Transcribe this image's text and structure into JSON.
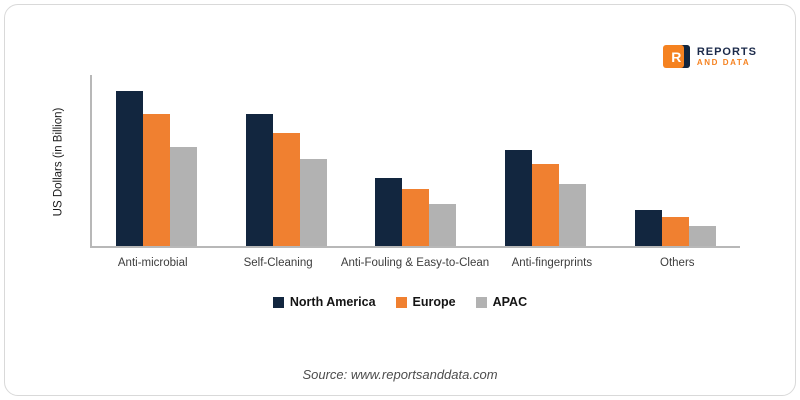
{
  "logo": {
    "mark": "R",
    "text_main": "REPORTS",
    "text_sub": "AND DATA"
  },
  "source": "Source: www.reportsanddata.com",
  "colors": {
    "north_america": "#12263f",
    "europe": "#f08030",
    "apac": "#b2b2b2",
    "axis": "#b8b8b8",
    "brand_orange": "#f58220",
    "brand_navy": "#1b2a4a"
  },
  "chart_data": {
    "type": "bar",
    "title": "",
    "xlabel": "",
    "ylabel": "US Dollars (in Billion)",
    "ylim": [
      0,
      10
    ],
    "grid": false,
    "legend_position": "bottom",
    "categories": [
      "Anti-microbial",
      "Self-Cleaning",
      "Anti-Fouling & Easy-to-Clean",
      "Anti-fingerprints",
      "Others"
    ],
    "series": [
      {
        "name": "North America",
        "color": "#12263f",
        "values": [
          10.0,
          8.5,
          4.4,
          6.2,
          2.3
        ]
      },
      {
        "name": "Europe",
        "color": "#f08030",
        "values": [
          8.5,
          7.3,
          3.7,
          5.3,
          1.9
        ]
      },
      {
        "name": "APAC",
        "color": "#b2b2b2",
        "values": [
          6.4,
          5.6,
          2.7,
          4.0,
          1.3
        ]
      }
    ]
  }
}
